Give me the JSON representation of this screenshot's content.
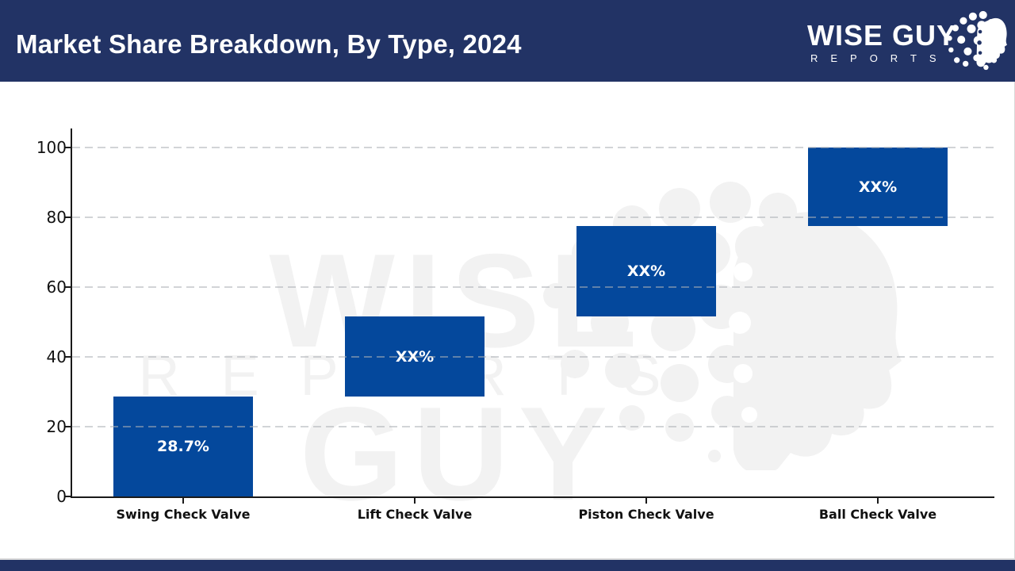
{
  "header": {
    "title": "Market Share Breakdown, By Type, 2024",
    "logo": {
      "wordmark": "WISE GUY",
      "subtitle": "REPORTS"
    },
    "bg_color": "#223365"
  },
  "watermark": {
    "wordmark": "WISE GUY",
    "subtitle": "REPORTS"
  },
  "footer": {
    "bg_color": "#223365"
  },
  "chart_data": {
    "type": "bar",
    "subtype": "waterfall",
    "title": "Market Share Breakdown, By Type, 2024",
    "categories": [
      "Swing Check Valve",
      "Lift Check Valve",
      "Piston Check Valve",
      "Ball Check Valve"
    ],
    "segments": [
      {
        "start": 0,
        "end": 28.7,
        "label": "28.7%"
      },
      {
        "start": 28.7,
        "end": 51.5,
        "label": "XX%"
      },
      {
        "start": 51.5,
        "end": 77.5,
        "label": "XX%"
      },
      {
        "start": 77.5,
        "end": 100,
        "label": "XX%"
      }
    ],
    "yticks": [
      0,
      20,
      40,
      60,
      80,
      100
    ],
    "ylim": [
      0,
      105
    ],
    "xlabel": "",
    "ylabel": "",
    "grid": "dashed-horizontal, drawn over bars",
    "legend": "none",
    "bar_color": "#04489c",
    "axis_color": "#1a1a1a"
  }
}
